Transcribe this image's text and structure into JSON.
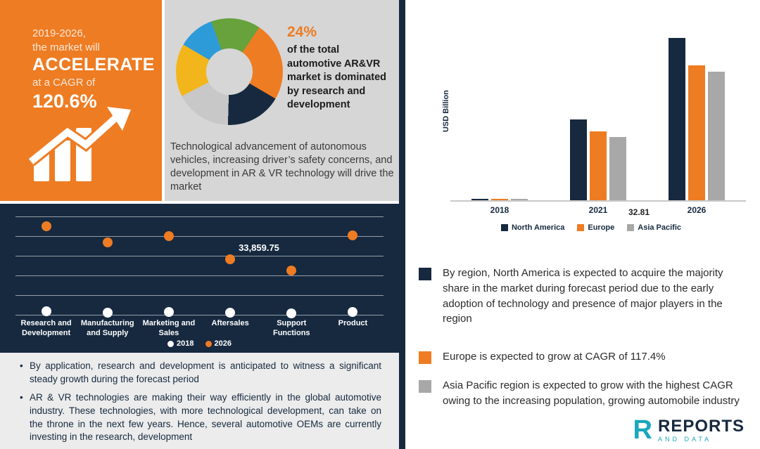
{
  "colors": {
    "orange": "#EE7C23",
    "navy": "#16293F",
    "panel_gray": "#D6D6D6",
    "bar_gray": "#A8A8A8",
    "bullets_bg": "#ECECEC",
    "teal": "#1BA7BD"
  },
  "left_top_panel": {
    "line1": "2019-2026,",
    "line2": "the market will",
    "line3": "ACCELERATE",
    "line4": "at a CAGR of",
    "line5": "120.6%"
  },
  "donut_panel": {
    "highlight": "24%",
    "headline": "of the total automotive AR&VR market is dominated by research and development",
    "body": "Technological advancement of autonomous vehicles, increasing driver’s safety concerns, and development in AR & VR technology will drive the market"
  },
  "left_bullets": [
    "By application, research and development is anticipated to witness a significant steady growth during the forecast period",
    "AR & VR technologies are making their way efficiently in the global automotive industry. These technologies, with more technological development, can take on the throne in the next few years. Hence, several automotive OEMs are currently investing in the research, development"
  ],
  "right_bullets": [
    {
      "color": "#16293F",
      "text": "By region, North America is expected to acquire the majority share in the market during forecast period due to the early adoption of technology and presence of major players in the region"
    },
    {
      "color": "#EE7C23",
      "text": "Europe is expected to grow at CAGR of 117.4%"
    },
    {
      "color": "#A8A8A8",
      "text": "Asia Pacific region is expected to grow with the highest CAGR owing to the increasing population, growing automobile industry"
    }
  ],
  "logo": {
    "mark": "R",
    "name": "REPORTS",
    "tagline": "AND DATA"
  },
  "chart_data": [
    {
      "type": "pie",
      "donut": true,
      "start_angle": -20,
      "segments": [
        {
          "label": "",
          "value": 15,
          "color": "#67A23C"
        },
        {
          "label": "Research and Development",
          "value": 24,
          "color": "#EE7C23"
        },
        {
          "label": "",
          "value": 17,
          "color": "#16293F"
        },
        {
          "label": "",
          "value": 17,
          "color": "#C8C8C8"
        },
        {
          "label": "",
          "value": 16,
          "color": "#F2B61C"
        },
        {
          "label": "",
          "value": 11,
          "color": "#2E9BD9"
        }
      ],
      "labeled_value": "24%"
    },
    {
      "type": "scatter",
      "categories": [
        "Research and Development",
        "Manufacturing and Supply",
        "Marketing and Sales",
        "Aftersales",
        "Support Functions",
        "Product"
      ],
      "series": [
        {
          "name": "2018",
          "color": "#FFFFFF",
          "values": [
            2000,
            1500,
            1800,
            1200,
            1000,
            1600
          ]
        },
        {
          "name": "2026",
          "color": "#EE7C23",
          "values": [
            54000,
            44000,
            48000,
            33859.75,
            27000,
            48400
          ]
        }
      ],
      "ymax": 60000,
      "gridlines": 6,
      "annotation": {
        "text": "33,859.75",
        "category": "Aftersales",
        "series": "2026"
      },
      "legend_position": "bottom"
    },
    {
      "type": "bar",
      "categories": [
        "2018",
        "2021",
        "2026"
      ],
      "series": [
        {
          "name": "North America",
          "color": "#16293F",
          "values": [
            0.8,
            38.5,
            77
          ]
        },
        {
          "name": "Europe",
          "color": "#EE7C23",
          "values": [
            0.6,
            32.81,
            64
          ]
        },
        {
          "name": "Asia Pacific",
          "color": "#A8A8A8",
          "values": [
            0.5,
            30,
            61
          ]
        }
      ],
      "ylabel": "USD Billion",
      "ylim": [
        0,
        80
      ],
      "annotation": {
        "text": "32.81",
        "category": "2021",
        "series": "Europe"
      },
      "legend_position": "bottom"
    }
  ]
}
